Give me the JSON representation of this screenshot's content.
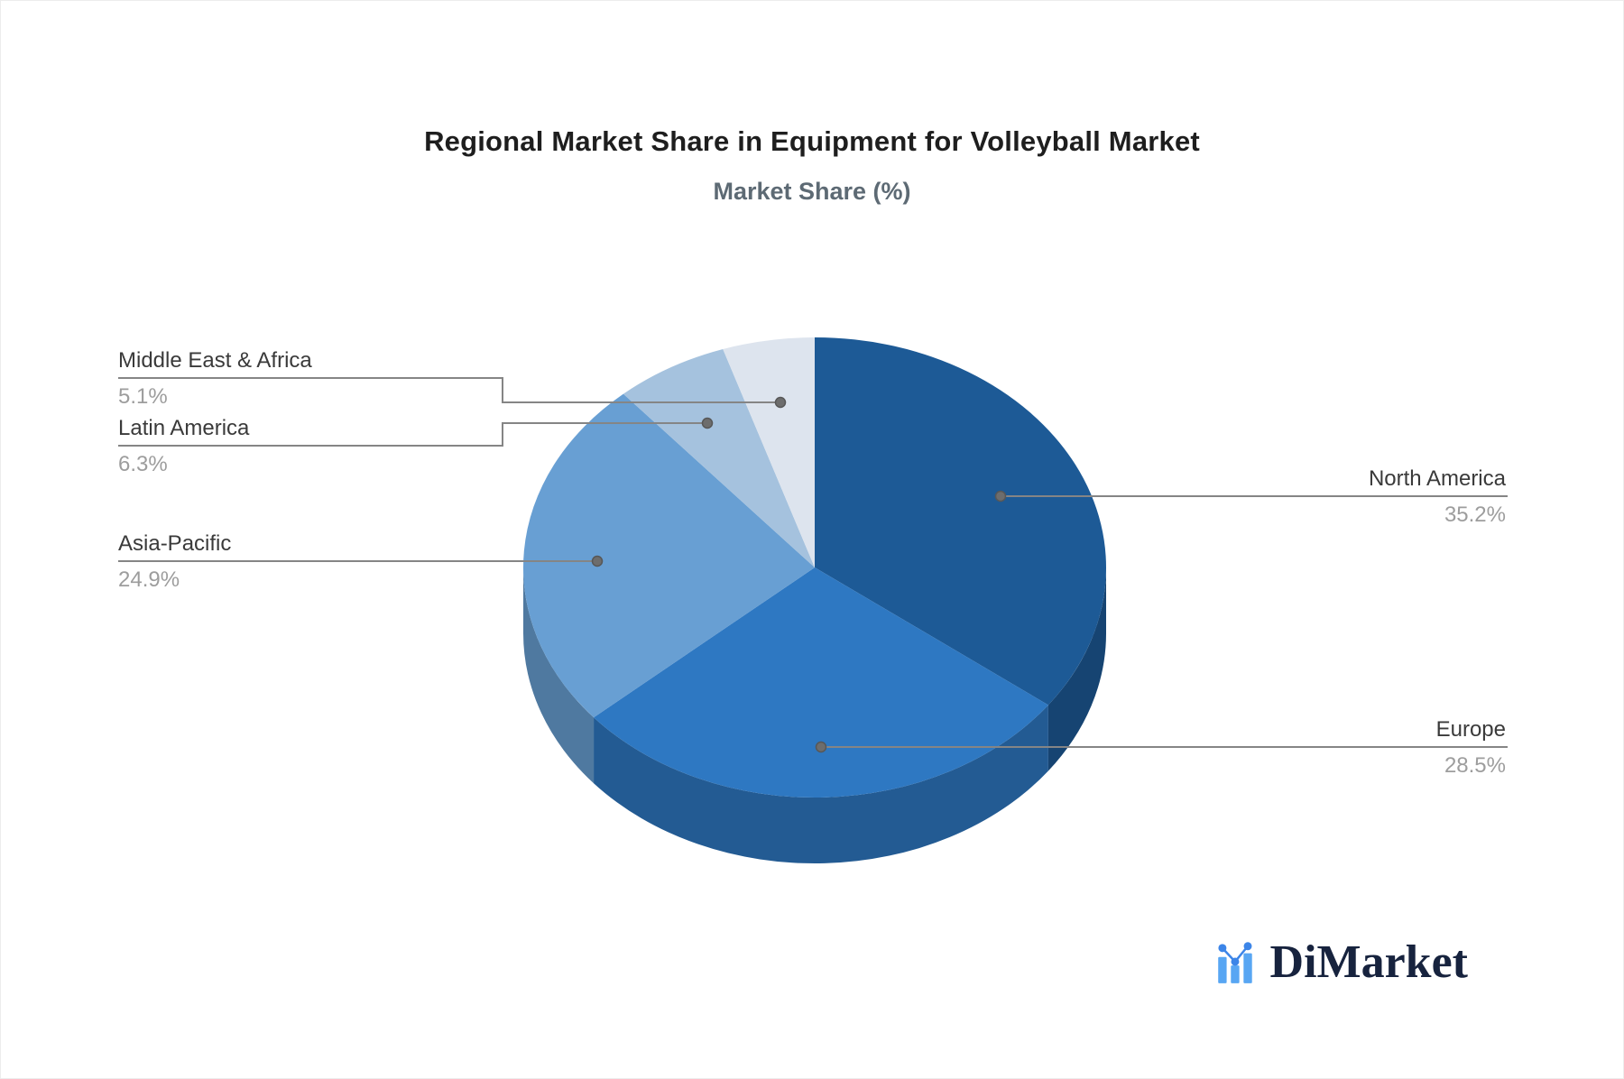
{
  "title": "Regional Market Share in Equipment for Volleyball Market",
  "subtitle": "Market Share (%)",
  "brand": {
    "name": "DiMarket"
  },
  "chart_data": {
    "type": "pie",
    "title": "Regional Market Share in Equipment for Volleyball Market",
    "subtitle": "Market Share (%)",
    "unit": "%",
    "style": "3d-pie",
    "start_angle": "12-o-clock",
    "direction": "clockwise",
    "legend_position": "callout-labels",
    "slices": [
      {
        "label": "North America",
        "value": 35.2,
        "pct_label": "35.2%",
        "color": "#1d5a96"
      },
      {
        "label": "Europe",
        "value": 28.5,
        "pct_label": "28.5%",
        "color": "#2e78c2"
      },
      {
        "label": "Asia-Pacific",
        "value": 24.9,
        "pct_label": "24.9%",
        "color": "#689fd3"
      },
      {
        "label": "Latin America",
        "value": 6.3,
        "pct_label": "6.3%",
        "color": "#a5c2de"
      },
      {
        "label": "Middle East & Africa",
        "value": 5.1,
        "pct_label": "5.1%",
        "color": "#dde4ee"
      }
    ]
  },
  "colors": {
    "title_text": "#1e1e1e",
    "subtitle_text": "#5d6a74",
    "label_text": "#3a3a3a",
    "pct_text": "#9d9d9d",
    "leader_line": "#858585",
    "leader_dot": "#6d6d6d",
    "logo_text": "#17233e",
    "logo_bar": "#58a6f3",
    "logo_dot": "#3c85e8"
  }
}
